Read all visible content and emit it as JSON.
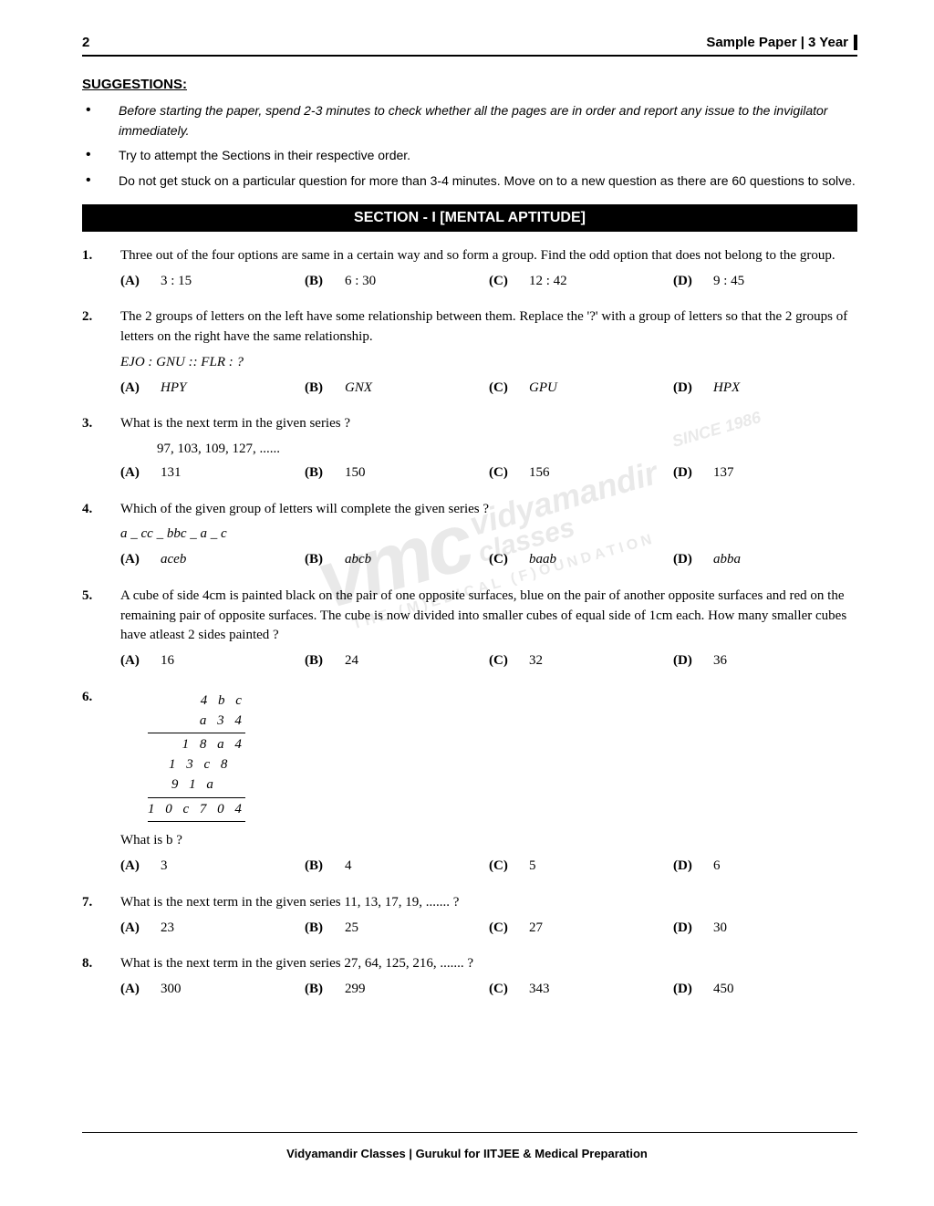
{
  "page_number": "2",
  "paper_label": "Sample Paper | 3 Year",
  "suggestions_heading": "SUGGESTIONS:",
  "suggestions": [
    {
      "text": "Before starting the paper, spend 2-3 minutes to check whether all the pages are in order and report any issue to the invigilator immediately.",
      "italic": true
    },
    {
      "text": "Try to attempt the Sections in their respective order.",
      "italic": false
    },
    {
      "text": "Do not get stuck on a particular question for more than 3-4 minutes. Move on to a new question as there are 60 questions to solve.",
      "italic": false
    }
  ],
  "section_title": "SECTION - I [MENTAL APTITUDE]",
  "questions": [
    {
      "num": "1.",
      "stem": "Three out of the four options are same in a certain way and so form a group. Find the odd option that does not belong to the group.",
      "options": [
        {
          "label": "(A)",
          "value": "3 : 15"
        },
        {
          "label": "(B)",
          "value": "6 : 30"
        },
        {
          "label": "(C)",
          "value": "12 : 42"
        },
        {
          "label": "(D)",
          "value": "9 : 45"
        }
      ]
    },
    {
      "num": "2.",
      "stem": "The 2 groups of letters on the left have some relationship between them. Replace the '?' with a group of letters so that the 2 groups of letters on the right have the same relationship.",
      "sub": "EJO : GNU :: FLR : ?",
      "sub_italic": true,
      "options": [
        {
          "label": "(A)",
          "value": "HPY",
          "italic": true
        },
        {
          "label": "(B)",
          "value": "GNX",
          "italic": true
        },
        {
          "label": "(C)",
          "value": "GPU",
          "italic": true
        },
        {
          "label": "(D)",
          "value": "HPX",
          "italic": true
        }
      ]
    },
    {
      "num": "3.",
      "stem": "What is the next term in the given series ?",
      "sub": "97, 103, 109, 127, ......",
      "options": [
        {
          "label": "(A)",
          "value": "131"
        },
        {
          "label": "(B)",
          "value": "150"
        },
        {
          "label": "(C)",
          "value": "156"
        },
        {
          "label": "(D)",
          "value": "137"
        }
      ]
    },
    {
      "num": "4.",
      "stem": "Which of the given group of letters will complete the given series ?",
      "sub": "a _ cc _ bbc _ a _ c",
      "sub_italic": true,
      "options": [
        {
          "label": "(A)",
          "value": "aceb",
          "italic": true
        },
        {
          "label": "(B)",
          "value": "abcb",
          "italic": true
        },
        {
          "label": "(C)",
          "value": "baab",
          "italic": true
        },
        {
          "label": "(D)",
          "value": "abba",
          "italic": true
        }
      ]
    },
    {
      "num": "5.",
      "stem": "A cube of side 4cm is painted black on the pair of one opposite surfaces, blue on the pair of another opposite surfaces and red on the remaining pair of opposite surfaces. The cube is now divided into smaller cubes of equal side of 1cm each. How many smaller cubes have atleast 2 sides painted ?",
      "options": [
        {
          "label": "(A)",
          "value": "16"
        },
        {
          "label": "(B)",
          "value": "24"
        },
        {
          "label": "(C)",
          "value": "32"
        },
        {
          "label": "(D)",
          "value": "36"
        }
      ]
    },
    {
      "num": "6.",
      "multiply": {
        "rows_top": [
          "4 b c",
          "a 3 4"
        ],
        "rows_mid": [
          "1 8 a 4",
          "1 3 c 8  ",
          "9 1 a    "
        ],
        "row_bot": "1 0 c 7 0 4"
      },
      "stem_after": "What is b ?",
      "options": [
        {
          "label": "(A)",
          "value": "3"
        },
        {
          "label": "(B)",
          "value": "4"
        },
        {
          "label": "(C)",
          "value": "5"
        },
        {
          "label": "(D)",
          "value": "6"
        }
      ]
    },
    {
      "num": "7.",
      "stem": "What is the next term in the given series  11, 13, 17, 19, ....... ?",
      "options": [
        {
          "label": "(A)",
          "value": "23"
        },
        {
          "label": "(B)",
          "value": "25"
        },
        {
          "label": "(C)",
          "value": "27"
        },
        {
          "label": "(D)",
          "value": "30"
        }
      ]
    },
    {
      "num": "8.",
      "stem": "What is the next term in the given series  27, 64, 125, 216, ....... ?",
      "options": [
        {
          "label": "(A)",
          "value": "300"
        },
        {
          "label": "(B)",
          "value": "299"
        },
        {
          "label": "(C)",
          "value": "343"
        },
        {
          "label": "(D)",
          "value": "450"
        }
      ]
    }
  ],
  "watermark": {
    "vmc": "vmc",
    "vidyamandir": "vidyamandir",
    "classes": "classes",
    "since": "SINCE 1986",
    "medfound": "THE (M)EDICAL (F)OUNDATION"
  },
  "footer": "Vidyamandir Classes | Gurukul for IITJEE & Medical Preparation"
}
